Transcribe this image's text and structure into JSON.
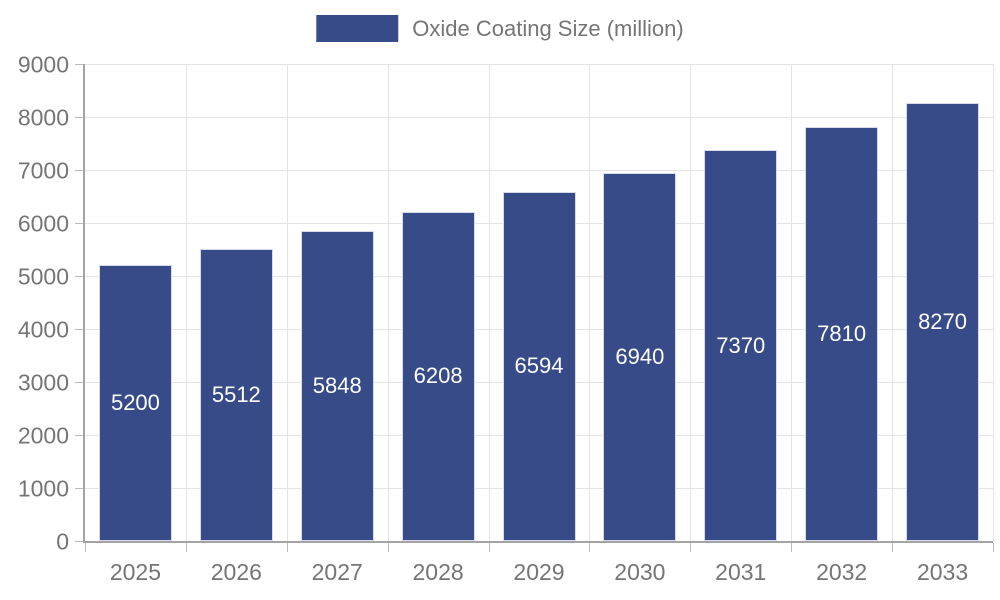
{
  "legend": {
    "label": "Oxide Coating Size (million)"
  },
  "colors": {
    "bar": "#374b88",
    "bar_border": "#d7daea",
    "grid": "#e4e4e4",
    "axis": "#a3a3a3",
    "tick": "#bbbbbb",
    "text": "#757575",
    "bar_label": "#ffffff"
  },
  "chart_data": {
    "type": "bar",
    "title": "",
    "series_name": "Oxide Coating Size (million)",
    "categories": [
      "2025",
      "2026",
      "2027",
      "2028",
      "2029",
      "2030",
      "2031",
      "2032",
      "2033"
    ],
    "values": [
      5200,
      5512,
      5848,
      6208,
      6594,
      6940,
      7370,
      7810,
      8270
    ],
    "xlabel": "",
    "ylabel": "",
    "ylim": [
      0,
      9000
    ],
    "ytick_step": 1000,
    "grid": true,
    "legend_position": "top-center",
    "value_labels": "inside-center"
  }
}
